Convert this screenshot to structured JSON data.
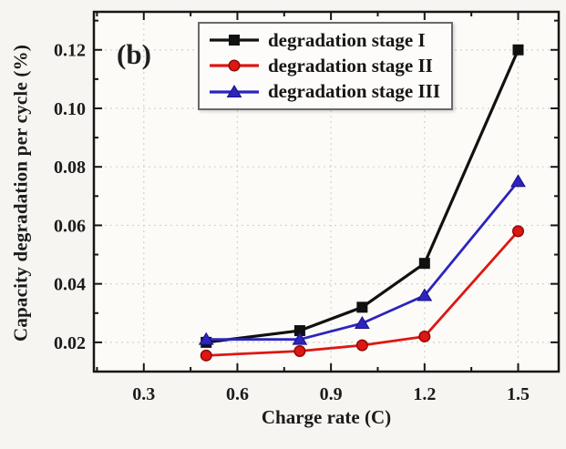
{
  "chart_data": {
    "type": "line",
    "panel_label": "(b)",
    "title": "",
    "xlabel": "Charge rate (C)",
    "ylabel": "Capacity degradation per cycle (%)",
    "x": [
      0.5,
      0.8,
      1.0,
      1.2,
      1.5
    ],
    "series": [
      {
        "name": "degradation stage I",
        "color": "#111111",
        "marker": "square",
        "marker_edge": "#111111",
        "values": [
          0.02,
          0.024,
          0.032,
          0.047,
          0.12
        ]
      },
      {
        "name": "degradation stage II",
        "color": "#dd1712",
        "marker": "circle",
        "marker_edge": "#8a0808",
        "values": [
          0.0155,
          0.017,
          0.019,
          0.022,
          0.058
        ]
      },
      {
        "name": "degradation stage III",
        "color": "#2c24bd",
        "marker": "triangle",
        "marker_edge": "#1a1280",
        "values": [
          0.021,
          0.021,
          0.0265,
          0.036,
          0.075
        ]
      }
    ],
    "x_ticks": [
      0.3,
      0.6,
      0.9,
      1.2,
      1.5
    ],
    "x_tick_labels": [
      "0.3",
      "0.6",
      "0.9",
      "1.2",
      "1.5"
    ],
    "x_minor_ticks": [
      0.15,
      0.45,
      0.75,
      1.05,
      1.35
    ],
    "y_ticks": [
      0.02,
      0.04,
      0.06,
      0.08,
      0.1,
      0.12
    ],
    "y_tick_labels": [
      "0.02",
      "0.04",
      "0.06",
      "0.08",
      "0.10",
      "0.12"
    ],
    "y_minor_ticks": [
      0.03,
      0.05,
      0.07,
      0.09,
      0.11,
      0.13
    ],
    "xlim": [
      0.14,
      1.63
    ],
    "ylim": [
      0.01,
      0.133
    ],
    "grid": "dotted-major",
    "grid_color": "#d3d2cc",
    "frame_color": "#161616",
    "plot_bg": "#fcfbf8",
    "legend_position": "top-center-inside"
  }
}
